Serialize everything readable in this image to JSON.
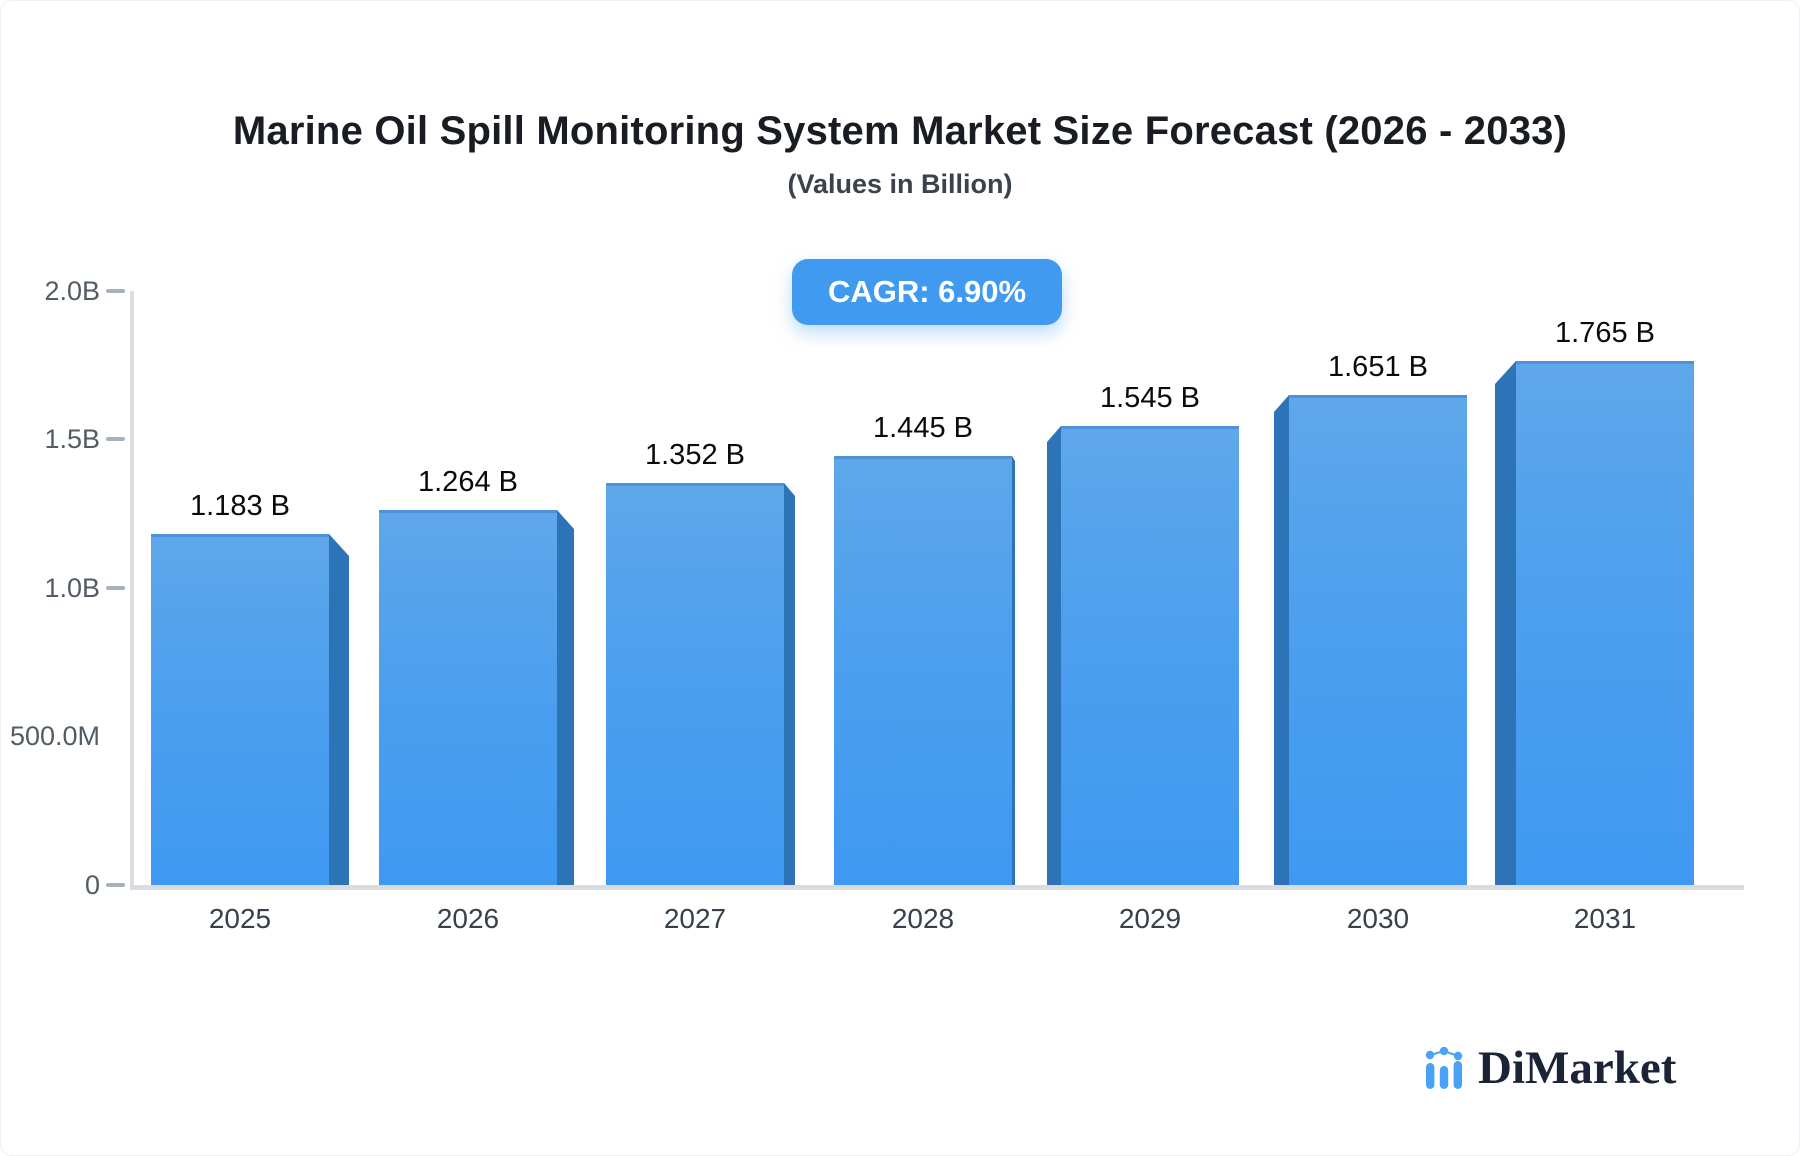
{
  "title": "Marine Oil Spill Monitoring System Market Size Forecast (2026 - 2033)",
  "subtitle": "(Values in Billion)",
  "badge": {
    "label": "CAGR: 6.90%"
  },
  "logo": {
    "text": "DiMarket",
    "icon": "mini-bar-chart-with-dots"
  },
  "colors": {
    "accent_blue": "#3f9af0",
    "bar_gradient_top": "#5ea7ea",
    "bar_gradient_bottom": "#3f99f2",
    "bar_side_face": "#2d73b7",
    "bar_top_edge": "#4e93d9",
    "axis_line": "#d8dce1",
    "tick_dash": "#a8b1ba",
    "y_tick_label": "#525c66",
    "x_tick_label": "#36414e",
    "value_label": "#0a0a0a",
    "title_text": "#191c22",
    "logo_navy": "#1b2437",
    "logo_blue": "#4aa2f7"
  },
  "chart_data": {
    "type": "bar",
    "title": "Marine Oil Spill Monitoring System Market Size Forecast (2026 - 2033)",
    "subtitle": "(Values in Billion)",
    "annotation": "CAGR: 6.90%",
    "categories": [
      "2025",
      "2026",
      "2027",
      "2028",
      "2029",
      "2030",
      "2031"
    ],
    "values": [
      1.183,
      1.264,
      1.352,
      1.445,
      1.545,
      1.651,
      1.765
    ],
    "value_labels": [
      "1.183 B",
      "1.264 B",
      "1.352 B",
      "1.445 B",
      "1.545 B",
      "1.651 B",
      "1.765 B"
    ],
    "unit": "Billion",
    "xlabel": "",
    "ylabel": "",
    "ylim": [
      0,
      2.0
    ],
    "y_ticks": [
      {
        "label": "2.0B",
        "value": 2.0,
        "dash": true
      },
      {
        "label": "1.5B",
        "value": 1.5,
        "dash": true
      },
      {
        "label": "1.0B",
        "value": 1.0,
        "dash": true
      },
      {
        "label": "500.0M",
        "value": 0.5,
        "dash": false
      },
      {
        "label": "0",
        "value": 0.0,
        "dash": true
      }
    ],
    "grid": false,
    "legend": false,
    "bar_style": "3d-perspective, side faces angled toward center bar"
  }
}
